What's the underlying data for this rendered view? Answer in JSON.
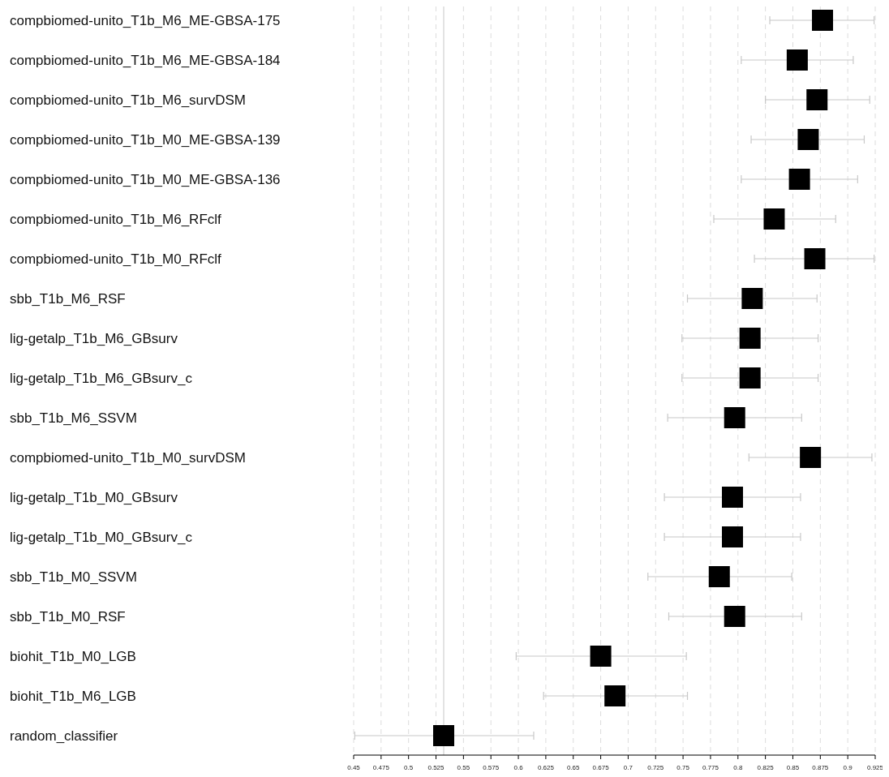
{
  "chart_data": {
    "type": "scatter",
    "orientation": "horizontal",
    "marker": "square",
    "grid": "x",
    "color": "#000000",
    "categories": [
      "compbiomed-unito_T1b_M6_ME-GBSA-175",
      "compbiomed-unito_T1b_M6_ME-GBSA-184",
      "compbiomed-unito_T1b_M6_survDSM",
      "compbiomed-unito_T1b_M0_ME-GBSA-139",
      "compbiomed-unito_T1b_M0_ME-GBSA-136",
      "compbiomed-unito_T1b_M6_RFclf",
      "compbiomed-unito_T1b_M0_RFclf",
      "sbb_T1b_M6_RSF",
      "lig-getalp_T1b_M6_GBsurv",
      "lig-getalp_T1b_M6_GBsurv_c",
      "sbb_T1b_M6_SSVM",
      "compbiomed-unito_T1b_M0_survDSM",
      "lig-getalp_T1b_M0_GBsurv",
      "lig-getalp_T1b_M0_GBsurv_c",
      "sbb_T1b_M0_SSVM",
      "sbb_T1b_M0_RSF",
      "biohit_T1b_M0_LGB",
      "biohit_T1b_M6_LGB",
      "random_classifier"
    ],
    "values": [
      0.877,
      0.854,
      0.872,
      0.864,
      0.856,
      0.833,
      0.87,
      0.813,
      0.811,
      0.811,
      0.797,
      0.866,
      0.795,
      0.795,
      0.783,
      0.797,
      0.675,
      0.688,
      0.532
    ],
    "errors": [
      [
        0.829,
        0.924
      ],
      [
        0.803,
        0.905
      ],
      [
        0.825,
        0.92
      ],
      [
        0.812,
        0.915
      ],
      [
        0.803,
        0.909
      ],
      [
        0.778,
        0.889
      ],
      [
        0.815,
        0.924
      ],
      [
        0.754,
        0.872
      ],
      [
        0.749,
        0.873
      ],
      [
        0.749,
        0.873
      ],
      [
        0.736,
        0.858
      ],
      [
        0.81,
        0.922
      ],
      [
        0.733,
        0.857
      ],
      [
        0.733,
        0.857
      ],
      [
        0.718,
        0.849
      ],
      [
        0.737,
        0.858
      ],
      [
        0.598,
        0.753
      ],
      [
        0.623,
        0.754
      ],
      [
        0.451,
        0.614
      ]
    ],
    "xlim": [
      0.45,
      0.925
    ],
    "xticks": [
      0.45,
      0.475,
      0.5,
      0.525,
      0.55,
      0.575,
      0.6,
      0.625,
      0.65,
      0.675,
      0.7,
      0.725,
      0.75,
      0.775,
      0.8,
      0.825,
      0.85,
      0.875,
      0.9,
      0.925
    ],
    "ref_lines": [
      {
        "axis": "x",
        "value": 0.532,
        "color": "#d0d0d0"
      }
    ]
  }
}
